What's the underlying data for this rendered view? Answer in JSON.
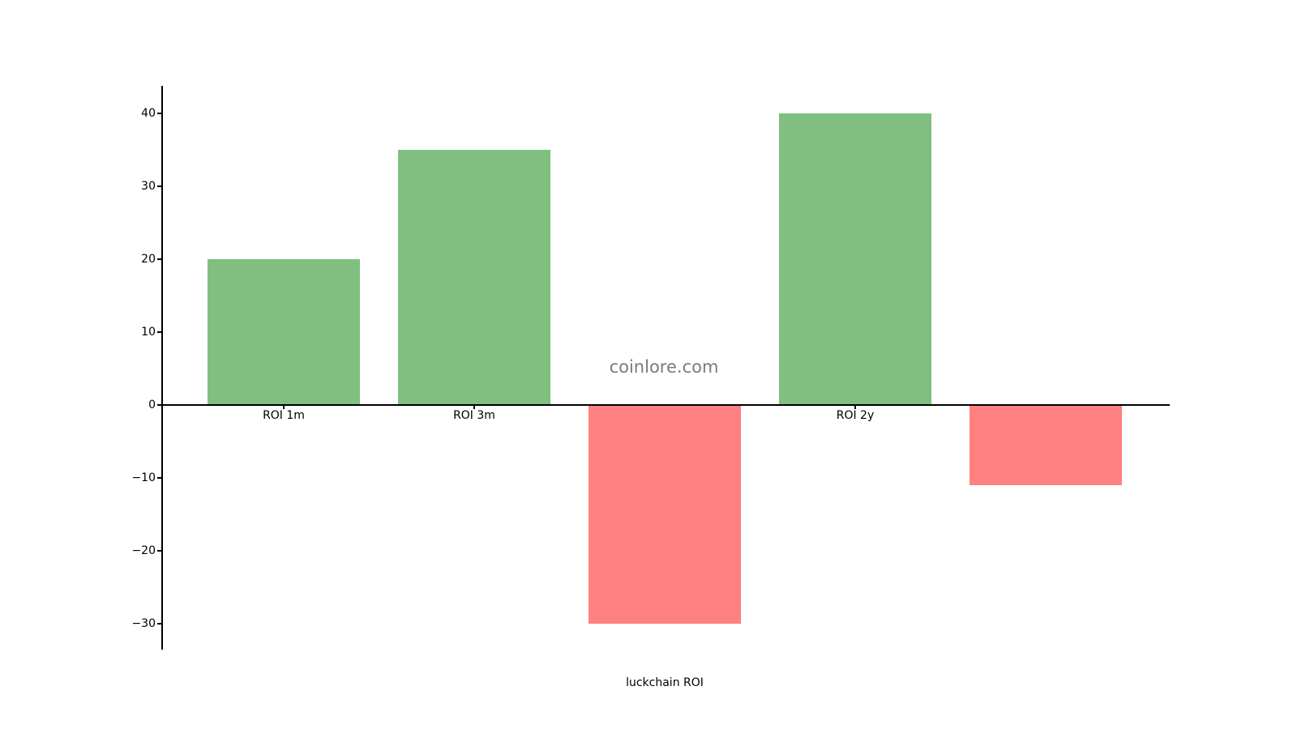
{
  "watermark": {
    "text": "coinlore.com",
    "color": "#7a7a7a"
  },
  "chart_data": {
    "type": "bar",
    "title": "",
    "xlabel": "luckchain ROI",
    "ylabel": "",
    "categories": [
      "ROI 1m",
      "ROI 3m",
      "",
      "ROI 2y",
      ""
    ],
    "values": [
      20,
      35,
      -30,
      40,
      -11
    ],
    "bars": [
      {
        "label": "ROI 1m",
        "value": 20,
        "color": "#80bf80"
      },
      {
        "label": "ROI 3m",
        "value": 35,
        "color": "#80bf80"
      },
      {
        "label": "",
        "value": -30,
        "color": "#ff8080"
      },
      {
        "label": "ROI 2y",
        "value": 40,
        "color": "#80bf80"
      },
      {
        "label": "",
        "value": -11,
        "color": "#ff8080"
      }
    ],
    "positive_color": "#80bf80",
    "negative_color": "#ff8080",
    "axis_color": "#000000",
    "text_color": "#000000",
    "y_ticks": [
      {
        "value": 40,
        "label": "40"
      },
      {
        "value": 30,
        "label": "30"
      },
      {
        "value": 20,
        "label": "20"
      },
      {
        "value": 10,
        "label": "10"
      },
      {
        "value": 0,
        "label": "0"
      },
      {
        "value": -10,
        "label": "−10"
      },
      {
        "value": -20,
        "label": "−20"
      },
      {
        "value": -30,
        "label": "−30"
      }
    ],
    "ylim": [
      -33.6,
      43.8
    ],
    "grid": false,
    "legend": null
  }
}
